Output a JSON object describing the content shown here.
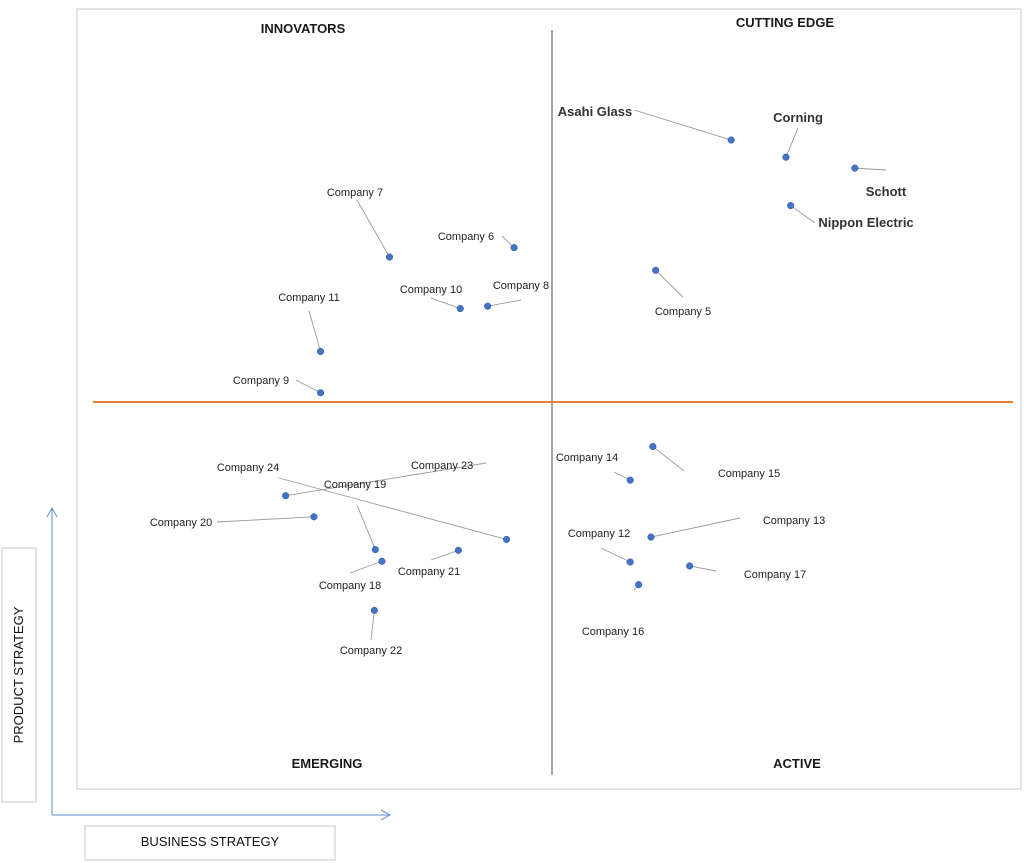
{
  "quadrants": {
    "top_left": "INNOVATORS",
    "top_right": "CUTTING EDGE",
    "bottom_left": "EMERGING",
    "bottom_right": "ACTIVE"
  },
  "axes": {
    "x_title": "BUSINESS STRATEGY",
    "y_title": "PRODUCT STRATEGY"
  },
  "colors": {
    "vertical_divider": "#8c8c8c",
    "horizontal_divider": "#ed7d31",
    "points": "#4472c4",
    "axis_arrows": "#5b8fd1"
  },
  "chart_data": {
    "type": "scatter",
    "xlim": [
      0,
      100
    ],
    "ylim": [
      0,
      100
    ],
    "series": [
      {
        "points": [
          {
            "label": "Asahi Glass",
            "x": 69.3,
            "y": 83.2,
            "major": true
          },
          {
            "label": "Corning",
            "x": 75.1,
            "y": 81.0,
            "major": true
          },
          {
            "label": "Schott",
            "x": 82.4,
            "y": 79.6,
            "major": true
          },
          {
            "label": "Nippon Electric",
            "x": 75.6,
            "y": 74.8,
            "major": true
          },
          {
            "label": "Company 5",
            "x": 61.3,
            "y": 66.5
          },
          {
            "label": "Company 6",
            "x": 46.3,
            "y": 69.4
          },
          {
            "label": "Company 7",
            "x": 33.1,
            "y": 68.2
          },
          {
            "label": "Company 8",
            "x": 43.5,
            "y": 61.9
          },
          {
            "label": "Company 9",
            "x": 25.8,
            "y": 50.8
          },
          {
            "label": "Company 10",
            "x": 40.6,
            "y": 61.6
          },
          {
            "label": "Company 11",
            "x": 25.8,
            "y": 56.1
          },
          {
            "label": "Company 12",
            "x": 58.6,
            "y": 29.1
          },
          {
            "label": "Company 13",
            "x": 60.8,
            "y": 32.3
          },
          {
            "label": "Company 14",
            "x": 58.6,
            "y": 39.6
          },
          {
            "label": "Company 15",
            "x": 61.0,
            "y": 43.9
          },
          {
            "label": "Company 16",
            "x": 59.5,
            "y": 26.2
          },
          {
            "label": "Company 17",
            "x": 64.9,
            "y": 28.6
          },
          {
            "label": "Company 18",
            "x": 32.3,
            "y": 29.2
          },
          {
            "label": "Company 19",
            "x": 31.6,
            "y": 30.7
          },
          {
            "label": "Company 20",
            "x": 25.1,
            "y": 34.9
          },
          {
            "label": "Company 21",
            "x": 40.4,
            "y": 30.6
          },
          {
            "label": "Company 22",
            "x": 31.5,
            "y": 22.9
          },
          {
            "label": "Company 23",
            "x": 22.1,
            "y": 37.6
          },
          {
            "label": "Company 24",
            "x": 45.5,
            "y": 32.0
          }
        ]
      }
    ]
  }
}
